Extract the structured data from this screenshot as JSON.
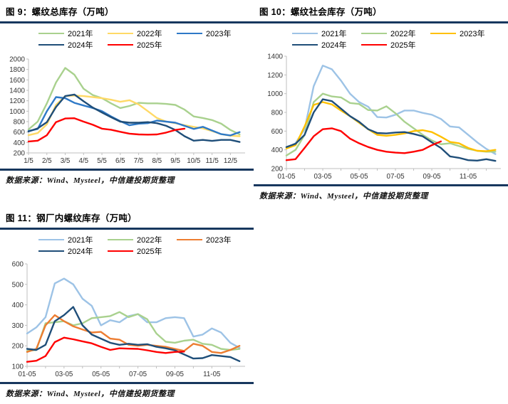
{
  "colors": {
    "rule": "#17375E",
    "axis": "#BFBFBF",
    "tick_text": "#333333"
  },
  "chart_data": [
    {
      "figure_title": "图 9：螺纹总库存（万吨）",
      "source_note": "数据来源：Wind、Mysteel，中信建投期货整理",
      "type": "line",
      "title": "螺纹总库存（万吨）",
      "ylim": [
        200,
        2000
      ],
      "ytick_step": 200,
      "xlim": [
        0,
        11.8
      ],
      "x_step": 0.5,
      "x_note": "x = months since 1/5, points are semi-monthly",
      "xtick_labels": [
        "1/5",
        "2/5",
        "3/5",
        "4/5",
        "5/5",
        "6/5",
        "7/5",
        "8/5",
        "9/5",
        "10/5",
        "11/5",
        "12/5"
      ],
      "xtick_positions": [
        0,
        1,
        2,
        3,
        4,
        5,
        6,
        7,
        8,
        9,
        10,
        11
      ],
      "grid": false,
      "legend_position": "top",
      "series": [
        {
          "name": "2021年",
          "color": "#A9D18E",
          "values": [
            650,
            800,
            1150,
            1550,
            1830,
            1700,
            1430,
            1310,
            1250,
            1150,
            1060,
            1100,
            1160,
            1150,
            1150,
            1140,
            1120,
            1030,
            900,
            870,
            830,
            760,
            640,
            555
          ]
        },
        {
          "name": "2022年",
          "color": "#FFD966",
          "values": [
            540,
            580,
            750,
            1120,
            1290,
            1300,
            1290,
            1270,
            1250,
            1220,
            1180,
            1210,
            1130,
            1000,
            870,
            800,
            770,
            730,
            700,
            670,
            620,
            560,
            530,
            520
          ]
        },
        {
          "name": "2023年",
          "color": "#2E79C7",
          "values": [
            620,
            660,
            1000,
            1270,
            1250,
            1160,
            1110,
            1060,
            1000,
            900,
            810,
            730,
            760,
            770,
            820,
            800,
            780,
            720,
            660,
            700,
            630,
            560,
            535,
            600
          ]
        },
        {
          "name": "2024年",
          "color": "#1F4E79",
          "values": [
            610,
            670,
            790,
            1080,
            1290,
            1320,
            1190,
            1070,
            975,
            885,
            800,
            780,
            780,
            790,
            770,
            720,
            640,
            520,
            435,
            450,
            430,
            450,
            450,
            410
          ]
        },
        {
          "name": "2025年",
          "color": "#FF0000",
          "values": [
            420,
            435,
            540,
            790,
            860,
            865,
            800,
            740,
            665,
            645,
            605,
            570,
            555,
            550,
            555,
            590,
            640,
            665
          ]
        }
      ]
    },
    {
      "figure_title": "图 10：螺纹社会库存（万吨）",
      "source_note": "数据来源：Wind、Mysteel，中信建投期货整理",
      "type": "line",
      "title": "螺纹社会库存（万吨）",
      "ylim": [
        200,
        1400
      ],
      "ytick_step": 200,
      "xlim": [
        0,
        11.8
      ],
      "x_step": 0.5,
      "x_note": "x = months since 01-05, points are semi-monthly",
      "xtick_labels": [
        "01-05",
        "03-05",
        "05-05",
        "07-05",
        "09-05",
        "11-05"
      ],
      "xtick_positions": [
        0,
        2,
        4,
        6,
        8,
        10
      ],
      "grid": false,
      "legend_position": "top",
      "series": [
        {
          "name": "2021年",
          "color": "#9DC3E6",
          "values": [
            420,
            470,
            620,
            1080,
            1300,
            1260,
            1140,
            1000,
            910,
            860,
            750,
            745,
            775,
            820,
            820,
            795,
            775,
            730,
            650,
            640,
            560,
            480,
            410,
            355
          ]
        },
        {
          "name": "2022年",
          "color": "#A9D18E",
          "values": [
            340,
            400,
            560,
            910,
            1000,
            970,
            960,
            900,
            890,
            825,
            820,
            865,
            790,
            700,
            630,
            560,
            500,
            460,
            470,
            440,
            410,
            390,
            380,
            380
          ]
        },
        {
          "name": "2023年",
          "color": "#FFC000",
          "values": [
            415,
            450,
            650,
            880,
            910,
            885,
            820,
            760,
            690,
            620,
            560,
            550,
            560,
            575,
            600,
            610,
            590,
            540,
            485,
            470,
            420,
            390,
            385,
            400
          ]
        },
        {
          "name": "2024年",
          "color": "#1F4E79",
          "values": [
            430,
            465,
            560,
            800,
            940,
            920,
            840,
            760,
            700,
            620,
            580,
            575,
            585,
            590,
            570,
            545,
            480,
            420,
            330,
            315,
            290,
            285,
            300,
            282
          ]
        },
        {
          "name": "2025年",
          "color": "#FF0000",
          "values": [
            290,
            300,
            420,
            545,
            620,
            630,
            600,
            520,
            470,
            430,
            400,
            380,
            370,
            365,
            380,
            400,
            450,
            490
          ]
        }
      ]
    },
    {
      "figure_title": "图 11：钢厂内螺纹库存（万吨）",
      "source_note": "数据来源：Wind、Mysteel，中信建投期货整理",
      "type": "line",
      "title": "钢厂内螺纹库存（万吨）",
      "ylim": [
        100,
        600
      ],
      "ytick_step": 100,
      "xlim": [
        0,
        11.8
      ],
      "x_step": 0.5,
      "x_note": "x = months since 01-05, points are semi-monthly",
      "xtick_labels": [
        "01-05",
        "03-05",
        "05-05",
        "07-05",
        "09-05",
        "11-05"
      ],
      "xtick_positions": [
        0,
        2,
        4,
        6,
        8,
        10
      ],
      "grid": false,
      "legend_position": "top",
      "series": [
        {
          "name": "2021年",
          "color": "#9DC3E6",
          "values": [
            260,
            290,
            340,
            505,
            528,
            500,
            430,
            395,
            300,
            325,
            315,
            345,
            355,
            315,
            315,
            335,
            340,
            335,
            245,
            255,
            285,
            265,
            215,
            190
          ]
        },
        {
          "name": "2022年",
          "color": "#A9D18E",
          "values": [
            175,
            180,
            310,
            315,
            320,
            300,
            310,
            335,
            340,
            345,
            365,
            340,
            355,
            330,
            260,
            220,
            215,
            225,
            230,
            210,
            205,
            185,
            180,
            185
          ]
        },
        {
          "name": "2023年",
          "color": "#ED7D31",
          "values": [
            170,
            185,
            300,
            350,
            320,
            295,
            280,
            265,
            268,
            235,
            230,
            205,
            200,
            205,
            200,
            195,
            185,
            175,
            210,
            200,
            170,
            165,
            180,
            200
          ]
        },
        {
          "name": "2024年",
          "color": "#1F4E79",
          "values": [
            185,
            180,
            205,
            320,
            350,
            390,
            300,
            255,
            235,
            215,
            205,
            210,
            205,
            208,
            195,
            188,
            178,
            158,
            138,
            140,
            155,
            150,
            145,
            125
          ]
        },
        {
          "name": "2025年",
          "color": "#FF0000",
          "values": [
            122,
            127,
            150,
            218,
            240,
            232,
            222,
            212,
            195,
            180,
            188,
            186,
            185,
            178,
            170,
            165,
            170,
            172
          ]
        }
      ]
    }
  ]
}
